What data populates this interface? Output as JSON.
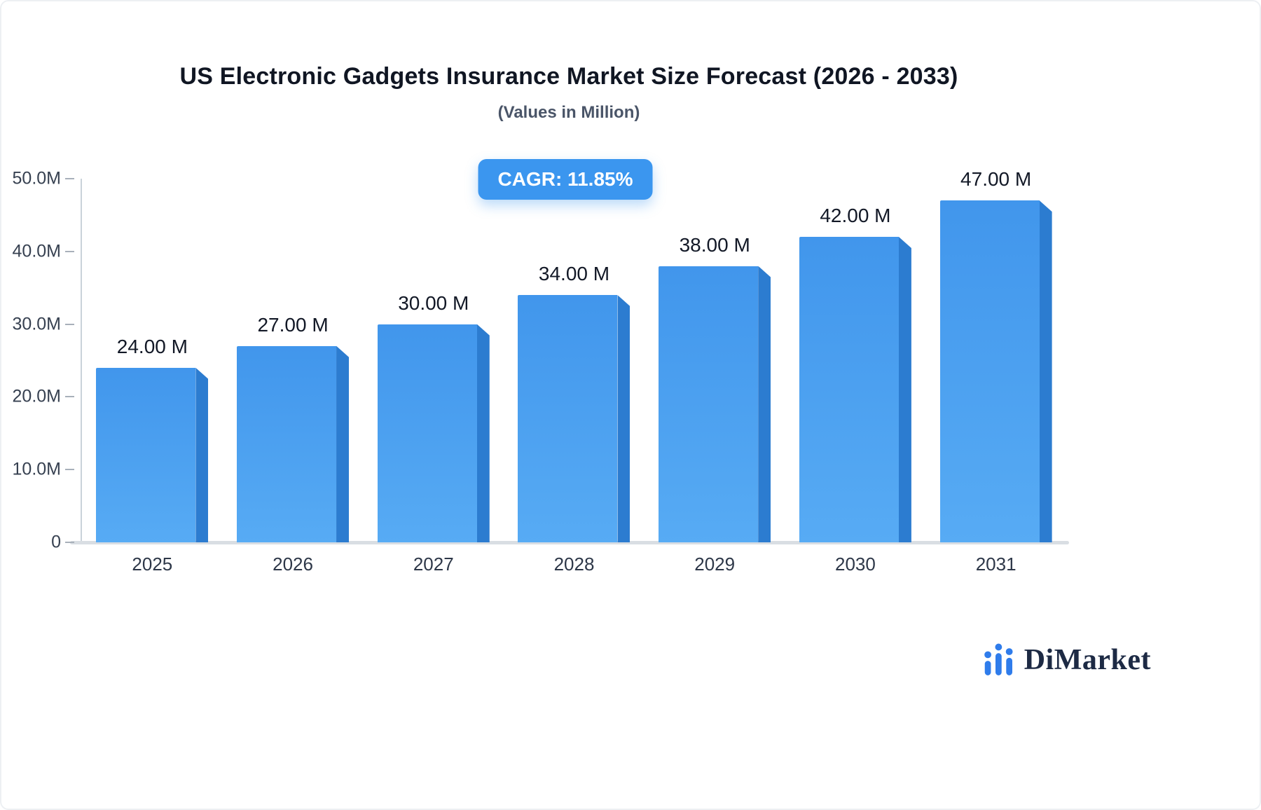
{
  "header": {
    "title": "US Electronic Gadgets Insurance Market Size Forecast (2026 - 2033)",
    "subtitle": "(Values in Million)"
  },
  "badge": {
    "label": "CAGR: 11.85%"
  },
  "chart_data": {
    "type": "bar",
    "title": "US Electronic Gadgets Insurance Market Size Forecast (2026 - 2033)",
    "subtitle": "(Values in Million)",
    "categories": [
      "2025",
      "2026",
      "2027",
      "2028",
      "2029",
      "2030",
      "2031"
    ],
    "values": [
      24,
      27,
      30,
      34,
      38,
      42,
      47
    ],
    "value_labels": [
      "24.00 M",
      "27.00 M",
      "30.00 M",
      "34.00 M",
      "38.00 M",
      "42.00 M",
      "47.00 M"
    ],
    "ylim": [
      0,
      50
    ],
    "ytick_values": [
      0,
      10,
      20,
      30,
      40,
      50
    ],
    "ytick_labels": [
      "0",
      "10.0M",
      "20.0M",
      "30.0M",
      "40.0M",
      "50.0M"
    ],
    "grid": false,
    "legend": false,
    "colors": {
      "bar_top": "#4196ec",
      "bar_bottom": "#57abf4",
      "bar_side": "#2c7cd0",
      "badge_bg": "#3b96ef"
    }
  },
  "footer": {
    "brand": "DiMarket"
  }
}
